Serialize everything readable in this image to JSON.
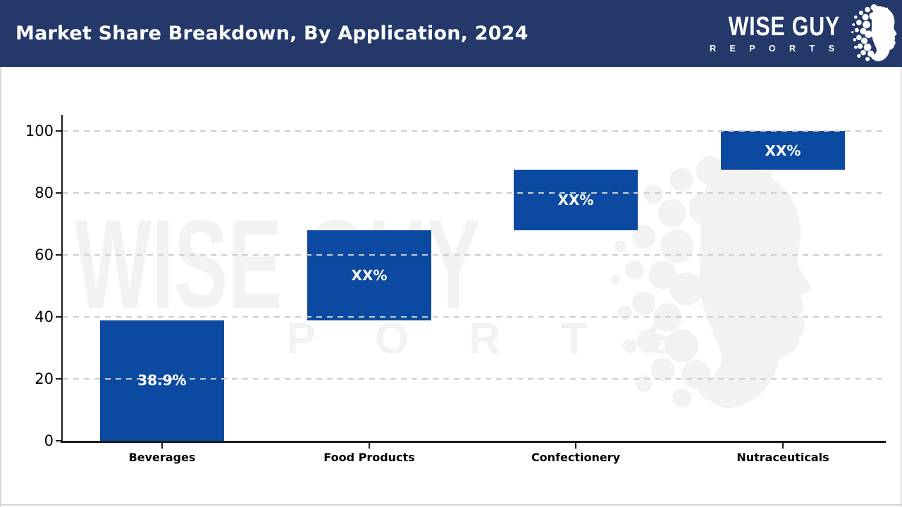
{
  "header": {
    "title": "Market Share Breakdown, By Application, 2024",
    "brand_line1": "WISE GUY",
    "brand_line2": "R E P O R T S"
  },
  "watermark": {
    "line1": "WISE GUY",
    "line2": "R E P O R T S"
  },
  "colors": {
    "header_bg": "#24396a",
    "bar_blue": "#0b4aa0",
    "grid_gray": "#cdcdcd",
    "watermark_gray": "#f2f2f2",
    "axis_black": "#1a1a1a"
  },
  "chart_data": {
    "type": "bar",
    "subtype": "waterfall-floating-bars",
    "title": "Market Share Breakdown, By Application, 2024",
    "xlabel": "",
    "ylabel": "",
    "categories": [
      "Beverages",
      "Food Products",
      "Confectionery",
      "Nutraceuticals"
    ],
    "segments": [
      {
        "category": "Beverages",
        "start": 0,
        "end": 38.9,
        "value": 38.9,
        "label": "38.9%"
      },
      {
        "category": "Food Products",
        "start": 38.9,
        "end": 68.0,
        "value": 29.1,
        "label": "XX%"
      },
      {
        "category": "Confectionery",
        "start": 68.0,
        "end": 87.5,
        "value": 19.5,
        "label": "XX%"
      },
      {
        "category": "Nutraceuticals",
        "start": 87.5,
        "end": 100.0,
        "value": 12.5,
        "label": "XX%"
      }
    ],
    "yticks": [
      0,
      20,
      40,
      60,
      80,
      100
    ],
    "ylim": [
      0,
      100
    ],
    "grid": "horizontal dashed, drawn over bars",
    "legend": "none",
    "bar_color": "#0b4aa0",
    "bar_label_color": "#ffffff"
  }
}
